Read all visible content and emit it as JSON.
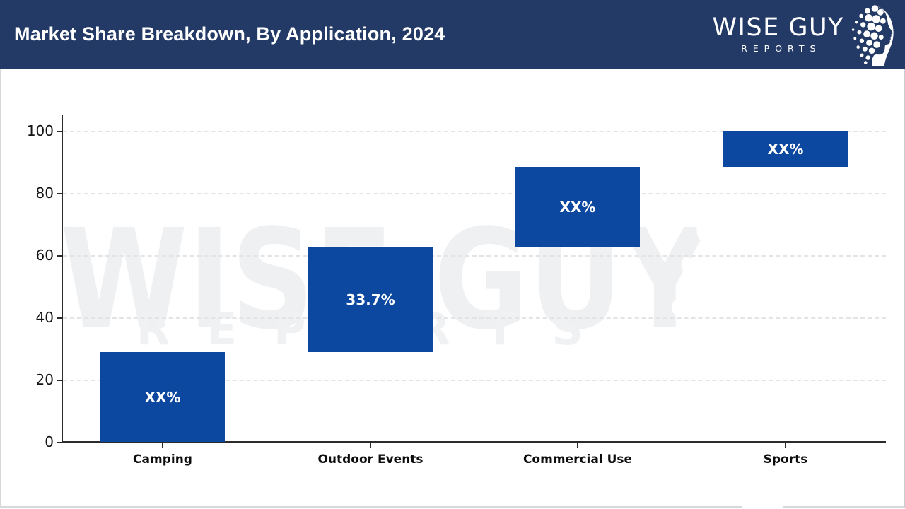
{
  "header": {
    "title": "Market Share Breakdown, By Application, 2024",
    "logo": {
      "line1": "WISE GUY",
      "line2": "REPORTS"
    }
  },
  "watermark": {
    "line1": "WISE GUY",
    "line2": "REPORTS"
  },
  "colors": {
    "header_bg": "#233a66",
    "bar": "#0c47a0",
    "bar_label": "#ffffff",
    "grid": "#e3e4e6",
    "axis": "#2b2b2b",
    "card_border": "#d6d8dc",
    "watermark": "#eff0f2"
  },
  "chart_data": {
    "type": "bar",
    "subtype": "waterfall",
    "title": "Market Share Breakdown, By Application, 2024",
    "categories": [
      "Camping",
      "Outdoor Events",
      "Commercial Use",
      "Sports"
    ],
    "segments": [
      {
        "category": "Camping",
        "start": 0,
        "end": 29.1,
        "value_label": "XX%"
      },
      {
        "category": "Outdoor Events",
        "start": 29.1,
        "end": 62.8,
        "value_label": "33.7%"
      },
      {
        "category": "Commercial Use",
        "start": 62.8,
        "end": 88.6,
        "value_label": "XX%"
      },
      {
        "category": "Sports",
        "start": 88.6,
        "end": 100,
        "value_label": "XX%"
      }
    ],
    "y_ticks": [
      0,
      20,
      40,
      60,
      80,
      100
    ],
    "ylim": [
      0,
      105
    ],
    "xlabel": "",
    "ylabel": "",
    "grid": "horizontal-dashed",
    "legend": "none"
  }
}
